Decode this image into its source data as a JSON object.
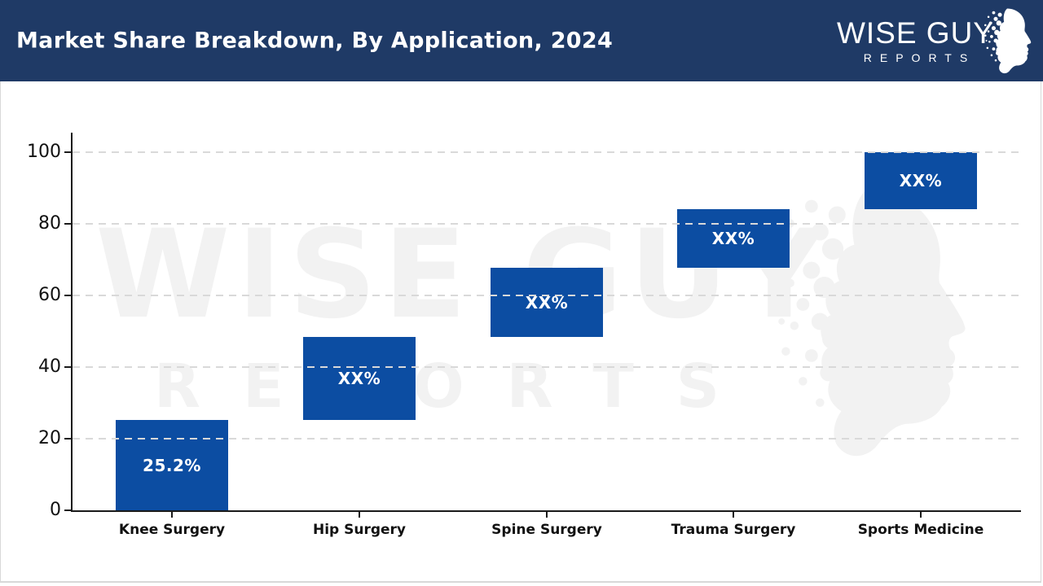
{
  "header": {
    "title": "Market Share Breakdown, By Application, 2024",
    "logo": {
      "name": "WISE GUY",
      "tagline": "REPORTS"
    }
  },
  "watermark": {
    "line1": "WISE GUY",
    "line2": "REPORTS"
  },
  "colors": {
    "header_bg": "#1F3A66",
    "bar_fill": "#0C4DA2",
    "bar_label_text": "#FFFFFF",
    "gridline": "#D9D9D9",
    "axis": "#1A1A1A",
    "tick_label_text": "#111111",
    "watermark": "#F2F2F2",
    "panel_border": "#D8D8D8"
  },
  "chart_data": {
    "type": "bar",
    "subtype": "floating-waterfall",
    "title": "Market Share Breakdown, By Application, 2024",
    "categories": [
      "Knee Surgery",
      "Hip Surgery",
      "Spine Surgery",
      "Trauma Surgery",
      "Sports Medicine"
    ],
    "series": [
      {
        "name": "Market Share (%)",
        "bars": [
          {
            "category": "Knee Surgery",
            "start": 0,
            "end": 25.2,
            "label": "25.2%"
          },
          {
            "category": "Hip Surgery",
            "start": 25.2,
            "end": 48.4,
            "label": "XX%"
          },
          {
            "category": "Spine Surgery",
            "start": 48.4,
            "end": 67.7,
            "label": "XX%"
          },
          {
            "category": "Trauma Surgery",
            "start": 67.7,
            "end": 84.1,
            "label": "XX%"
          },
          {
            "category": "Sports Medicine",
            "start": 84.1,
            "end": 100,
            "label": "XX%"
          }
        ]
      }
    ],
    "xlabel": "",
    "ylabel": "",
    "yticks": [
      0,
      20,
      40,
      60,
      80,
      100
    ],
    "ylim": [
      0,
      105
    ],
    "grid": "horizontal-dashed",
    "legend": "none"
  }
}
